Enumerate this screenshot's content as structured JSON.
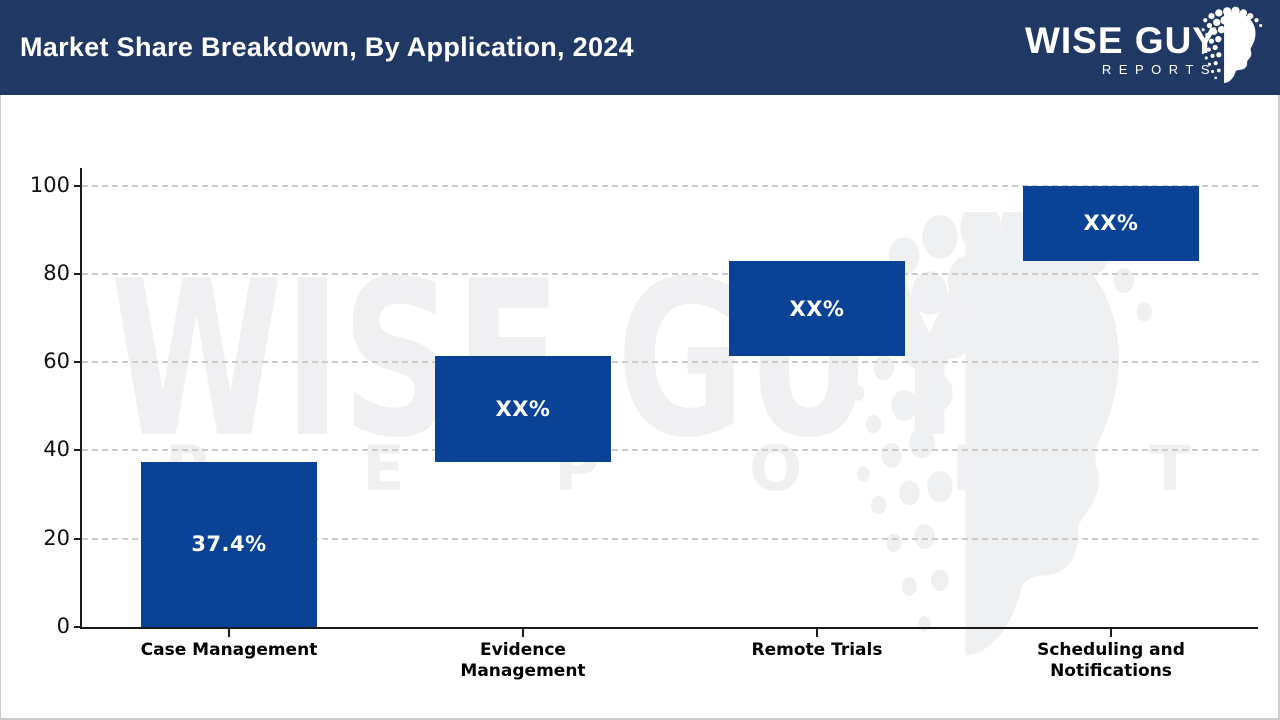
{
  "header": {
    "title": "Market Share Breakdown, By Application, 2024",
    "bg_color": "#1f3864",
    "logo_line1": "WISE GUY",
    "logo_line2": "REPORTS"
  },
  "watermark": {
    "line1": "WISE GUY",
    "line2": "R E P O R T S"
  },
  "chart_data": {
    "type": "bar",
    "subtype": "waterfall-stacked-percentage",
    "title": "Market Share Breakdown, By Application, 2024",
    "categories": [
      "Case Management",
      "Evidence Management",
      "Remote Trials",
      "Scheduling and Notifications"
    ],
    "categories_display": [
      [
        "Case Management"
      ],
      [
        "Evidence",
        "Management"
      ],
      [
        "Remote Trials"
      ],
      [
        "Scheduling and",
        "Notifications"
      ]
    ],
    "segments": [
      {
        "category": "Case Management",
        "start": 0,
        "end": 37.4,
        "label": "37.4%"
      },
      {
        "category": "Evidence Management",
        "start": 37.4,
        "end": 61.3,
        "label": "XX%"
      },
      {
        "category": "Remote Trials",
        "start": 61.3,
        "end": 83.0,
        "label": "XX%"
      },
      {
        "category": "Scheduling and Notifications",
        "start": 83.0,
        "end": 100.0,
        "label": "XX%"
      }
    ],
    "bar_color": "#0a4396",
    "bar_label_color": "#ffffff",
    "xlabel": "",
    "ylabel": "",
    "ylim": [
      0,
      104
    ],
    "yticks": [
      0,
      20,
      40,
      60,
      80,
      100
    ],
    "grid": "horizontal-dashed",
    "gridline_color": "#cccccc",
    "axis_color": "#1a1a1a",
    "legend": "none"
  }
}
